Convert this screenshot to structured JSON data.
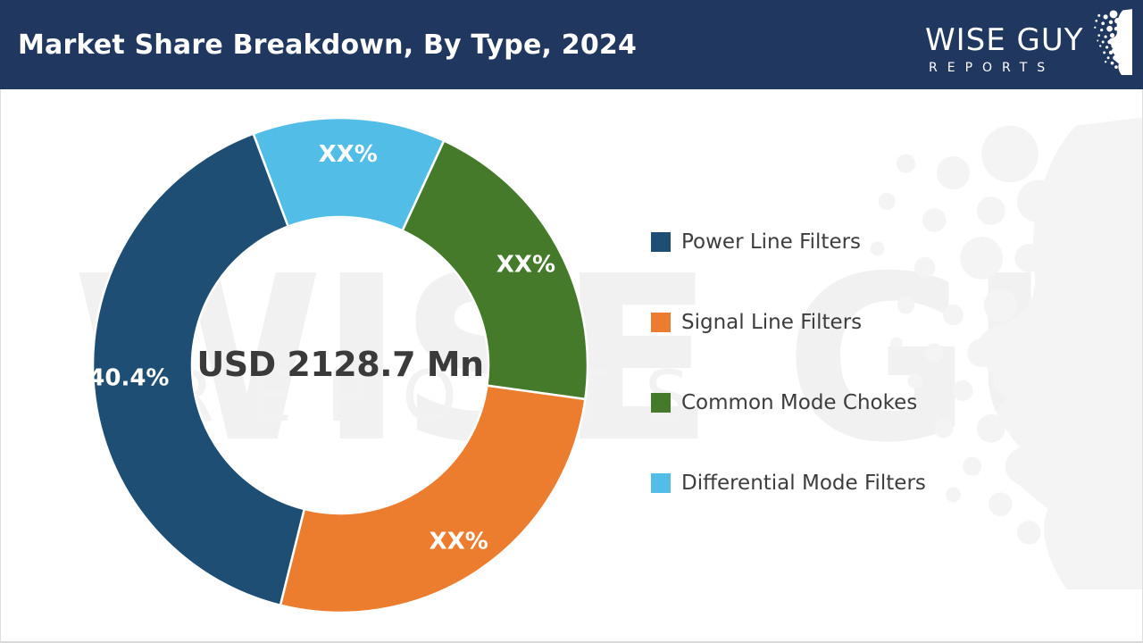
{
  "header": {
    "title": "Market Share Breakdown, By Type, 2024",
    "logo": {
      "line1": "WISE GUY",
      "line2": "REPORTS"
    }
  },
  "chart_data": {
    "type": "donut",
    "title": "Market Share Breakdown, By Type, 2024",
    "center_label": "USD 2128.7 Mn",
    "start_angle_deg": 194,
    "legend_position": "right",
    "segments": [
      {
        "name": "Power Line Filters",
        "label": "40.4%",
        "value": 40.4,
        "color": "#1f4e74"
      },
      {
        "name": "Differential Mode Filters",
        "label": "XX%",
        "value": 12.6,
        "color": "#52bde6"
      },
      {
        "name": "Common Mode Chokes",
        "label": "XX%",
        "value": 20.3,
        "color": "#447a2a"
      },
      {
        "name": "Signal Line Filters",
        "label": "XX%",
        "value": 26.7,
        "color": "#ec7d2e"
      }
    ]
  },
  "legend": [
    {
      "label": "Power Line Filters",
      "color": "#1f4e74"
    },
    {
      "label": "Signal Line Filters",
      "color": "#ec7d2e"
    },
    {
      "label": "Common Mode Chokes",
      "color": "#447a2a"
    },
    {
      "label": "Differential Mode Filters",
      "color": "#52bde6"
    }
  ],
  "watermark": {
    "line1": "WISE GUY",
    "line2": "REPORTS"
  }
}
